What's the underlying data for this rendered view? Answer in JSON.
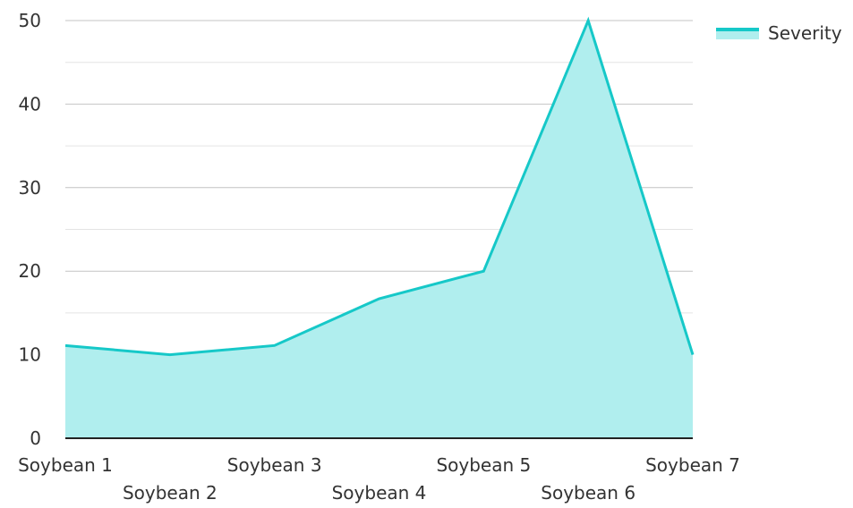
{
  "chart_data": {
    "type": "area",
    "categories": [
      "Soybean 1",
      "Soybean 2",
      "Soybean 3",
      "Soybean 4",
      "Soybean 5",
      "Soybean 6",
      "Soybean 7"
    ],
    "series": [
      {
        "name": "Severity",
        "values": [
          11.1,
          10,
          11.1,
          16.7,
          20,
          50,
          10
        ]
      }
    ],
    "ylim": [
      0,
      50
    ],
    "yticks": [
      0,
      10,
      20,
      30,
      40,
      50
    ],
    "grid": true,
    "legend_position": "top-right",
    "colors": {
      "line": "#16c8c8",
      "fill": "#b0eeee",
      "grid_major": "#c4c4c4",
      "grid_minor": "#e4e4e4",
      "axis": "#222222",
      "text": "#333333"
    }
  }
}
